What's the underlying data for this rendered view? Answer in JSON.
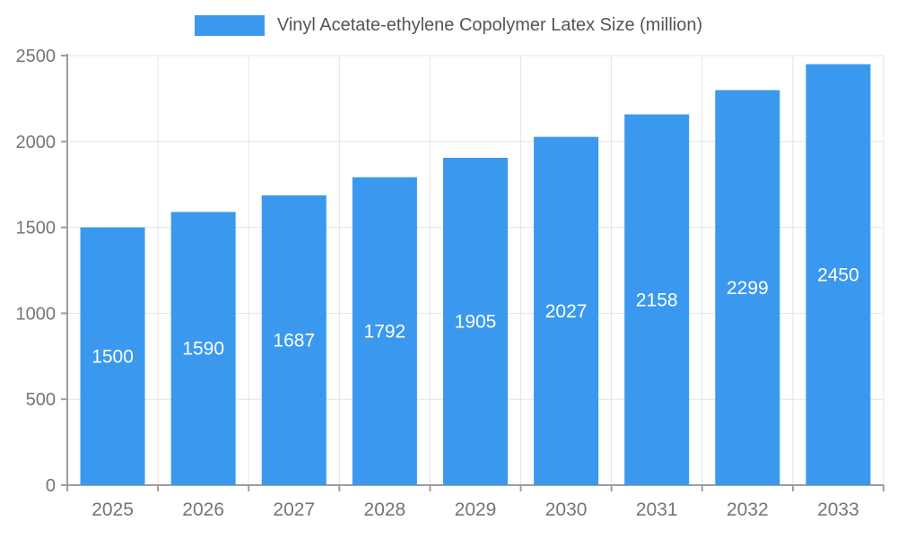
{
  "chart_data": {
    "type": "bar",
    "title": "Vinyl Acetate-ethylene Copolymer Latex Size (million)",
    "categories": [
      "2025",
      "2026",
      "2027",
      "2028",
      "2029",
      "2030",
      "2031",
      "2032",
      "2033"
    ],
    "values": [
      1500,
      1590,
      1687,
      1792,
      1905,
      2027,
      2158,
      2299,
      2450
    ],
    "xlabel": "",
    "ylabel": "",
    "ylim": [
      0,
      2500
    ],
    "yticks": [
      0,
      500,
      1000,
      1500,
      2000,
      2500
    ],
    "grid": true,
    "legend_position": "top-center",
    "bar_color": "#3a99ee",
    "bar_label_color": "#ffffff",
    "axis_line_color": "#9e9e9e",
    "grid_color": "#e4e4e4",
    "tick_label_color": "#757575",
    "title_color": "#555555"
  }
}
